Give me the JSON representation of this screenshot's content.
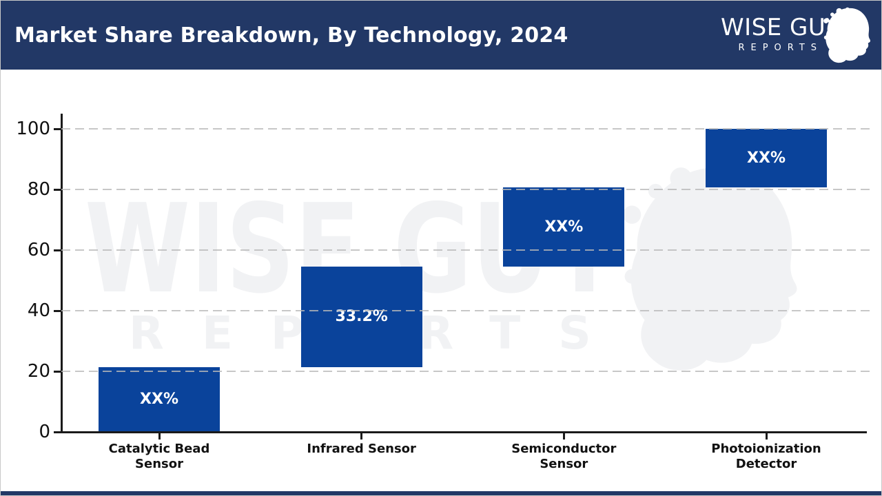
{
  "header": {
    "title": "Market Share Breakdown, By Technology, 2024",
    "bg_color": "#223866",
    "logo": {
      "name": "WISE GUY",
      "subtitle": "REPORTS"
    }
  },
  "watermark": {
    "line1": "WISE GUY",
    "line2": "REPORTS",
    "color": "#f1f2f4"
  },
  "chart_data": {
    "type": "bar",
    "subtype": "waterfall",
    "title": "Market Share Breakdown, By Technology, 2024",
    "categories": [
      "Catalytic Bead\nSensor",
      "Infrared Sensor",
      "Semiconductor\nSensor",
      "Photoionization\nDetector"
    ],
    "series": [
      {
        "name": "Market Share (%)",
        "segments": [
          {
            "start": 0,
            "end": 21.4,
            "label": "XX%"
          },
          {
            "start": 21.4,
            "end": 54.6,
            "label": "33.2%"
          },
          {
            "start": 54.6,
            "end": 80.6,
            "label": "XX%"
          },
          {
            "start": 80.6,
            "end": 100,
            "label": "XX%"
          }
        ]
      }
    ],
    "ylim": [
      0,
      100
    ],
    "yticks": [
      0,
      20,
      40,
      60,
      80,
      100
    ],
    "xlabel": "",
    "ylabel": "",
    "grid": "horizontal dashed, drawn above bars",
    "legend": "none",
    "bar_color": "#0a439b",
    "bar_label_color": "#ffffff"
  }
}
